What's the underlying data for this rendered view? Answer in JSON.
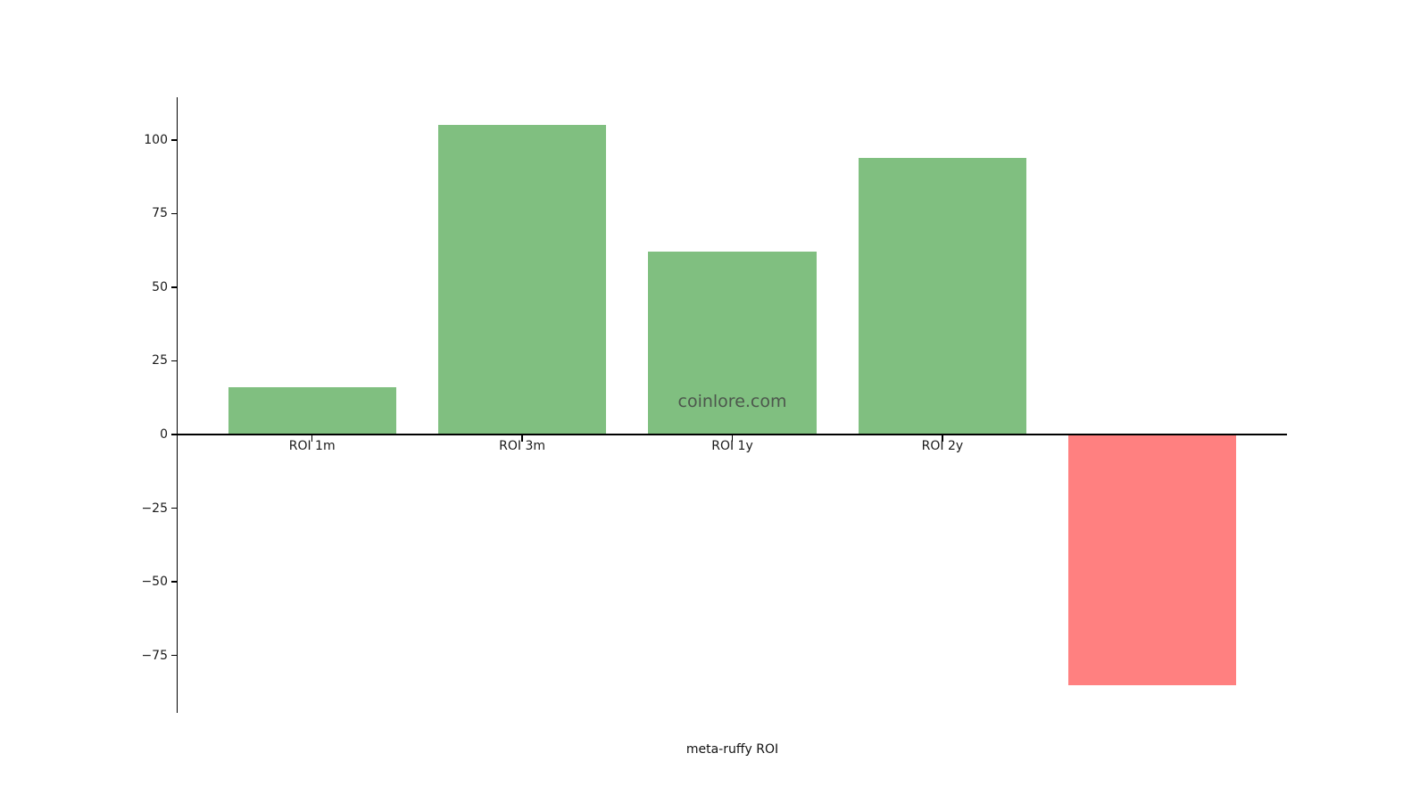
{
  "page": {
    "background_color": "#ffffff"
  },
  "chart_data": {
    "type": "bar",
    "title": "meta-ruffy ROI",
    "watermark": "coinlore.com",
    "categories": [
      "ROI 1m",
      "ROI 3m",
      "ROI 1y",
      "ROI 2y",
      ""
    ],
    "values": [
      16,
      105,
      62,
      94,
      -85
    ],
    "bar_colors": [
      "#80bf80",
      "#80bf80",
      "#80bf80",
      "#80bf80",
      "#ff8080"
    ],
    "positive_color": "#80bf80",
    "negative_color": "#ff8080",
    "yticks": [
      100,
      75,
      50,
      25,
      0,
      -25,
      -50,
      -75
    ],
    "ylim": [
      -94.5,
      114.5
    ],
    "xlim": [
      -0.64,
      4.64
    ],
    "bar_width": 0.8,
    "grid": false,
    "legend": null,
    "axis_color": "#000000",
    "tick_label_color": "#1a1a1a",
    "xlabel": "",
    "ylabel": ""
  }
}
